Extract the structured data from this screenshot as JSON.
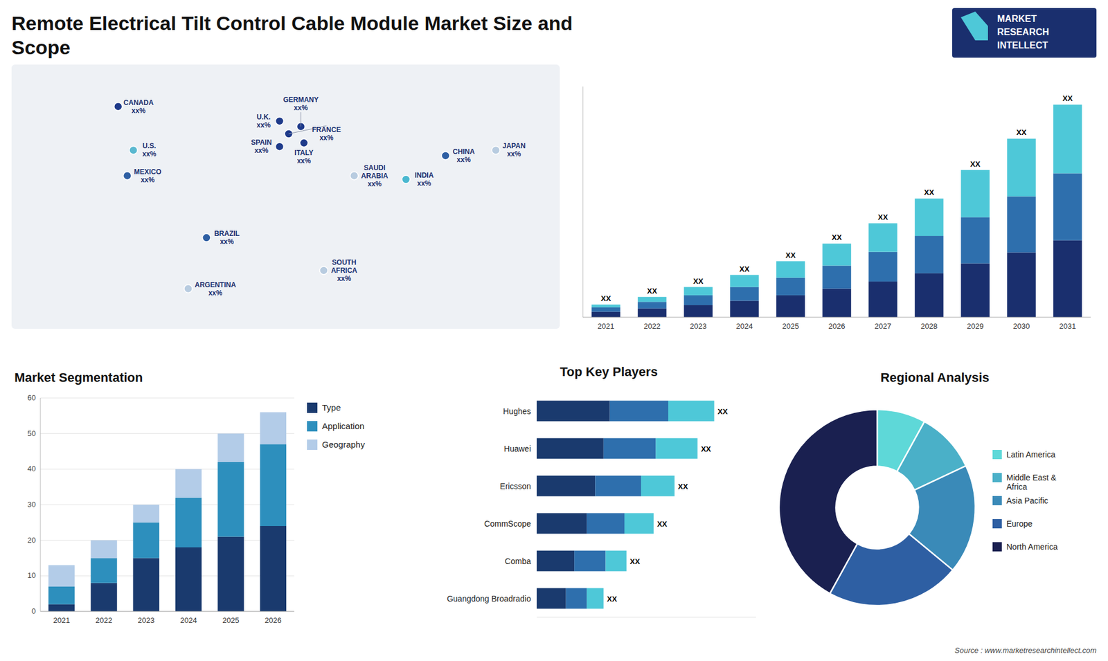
{
  "title": "Remote Electrical Tilt Control Cable Module Market Size and\nScope",
  "annotations": [
    "MARKET",
    "RESEARCH",
    "INTELLECT",
    "Source : www.marketresearchintellect.com"
  ],
  "chart_data": [
    {
      "type": "map",
      "categories": [
        "CANADA",
        "U.S.",
        "MEXICO",
        "BRAZIL",
        "ARGENTINA",
        "U.K.",
        "FRANCE",
        "SPAIN",
        "GERMANY",
        "ITALY",
        "SAUDI\nARABIA",
        "SOUTH\nAFRICA",
        "CHINA",
        "JAPAN",
        "INDIA"
      ],
      "x": [
        -110,
        -100,
        -104,
        -52,
        -64,
        -4,
        2,
        -4,
        10,
        12,
        45,
        25,
        105,
        138,
        79
      ],
      "y": [
        62,
        38,
        24,
        -10,
        -38,
        54,
        47,
        40,
        51,
        42,
        24,
        -28,
        35,
        38,
        22
      ],
      "annotations": [
        "xx%",
        "xx%",
        "xx%",
        "xx%",
        "xx%",
        "xx%",
        "xx%",
        "xx%",
        "xx%",
        "xx%",
        "xx%",
        "xx%",
        "xx%",
        "xx%",
        "xx%"
      ],
      "colors": [
        "#1e3a8a",
        "#5ab8d0",
        "#2e5fa3",
        "#2e5fa3",
        "#b8cce0",
        "#1e3a8a",
        "#1e3a8a",
        "#1e3a8a",
        "#1e3a8a",
        "#1e3a8a",
        "#b8cce0",
        "#b8cce0",
        "#2e5fa3",
        "#b8cce0",
        "#4ab8d0"
      ],
      "xlim": [
        -180,
        180
      ],
      "ylim": [
        -60,
        85
      ],
      "tick_labels": false
    },
    {
      "type": "bar",
      "stacked": true,
      "categories": [
        "2021",
        "2022",
        "2023",
        "2024",
        "2025",
        "2026",
        "2027",
        "2028",
        "2029",
        "2030",
        "2031"
      ],
      "series": [
        {
          "color": "#1a2f6e",
          "values": [
            1.0,
            1.6,
            2.2,
            3.0,
            4.0,
            5.2,
            6.5,
            8.0,
            9.8,
            11.8,
            14.0
          ]
        },
        {
          "color": "#2e6fad",
          "values": [
            0.8,
            1.2,
            1.8,
            2.5,
            3.2,
            4.2,
            5.4,
            6.8,
            8.4,
            10.2,
            12.2
          ]
        },
        {
          "color": "#4ec8d8",
          "values": [
            0.5,
            0.9,
            1.5,
            2.2,
            3.0,
            4.0,
            5.2,
            6.8,
            8.6,
            10.5,
            12.5
          ]
        }
      ],
      "ylim": [
        0,
        42
      ],
      "tick_labels": "x",
      "annotations": [
        "XX",
        "XX",
        "XX",
        "XX",
        "XX",
        "XX",
        "XX",
        "XX",
        "XX",
        "XX",
        "XX"
      ]
    },
    {
      "type": "bar",
      "title": "Market Segmentation",
      "stacked": true,
      "categories": [
        "2021",
        "2022",
        "2023",
        "2024",
        "2025",
        "2026"
      ],
      "series": [
        {
          "name": "Type",
          "color": "#1a3a6e",
          "values": [
            2,
            8,
            15,
            18,
            21,
            24
          ]
        },
        {
          "name": "Application",
          "color": "#2d8fbd",
          "values": [
            5,
            7,
            10,
            14,
            21,
            23
          ]
        },
        {
          "name": "Geography",
          "color": "#b3cce8",
          "values": [
            6,
            5,
            5,
            8,
            8,
            9
          ]
        }
      ],
      "ylim": [
        0,
        60
      ],
      "yticks": [
        0,
        10,
        20,
        30,
        40,
        50,
        60
      ],
      "grid": true,
      "legend": "right"
    },
    {
      "type": "bar",
      "title": "Top Key Players",
      "orientation": "horizontal",
      "stacked": true,
      "categories": [
        "Hughes",
        "Huawei",
        "Ericsson",
        "CommScope",
        "Comba",
        "Guangdong Broadradio"
      ],
      "series": [
        {
          "color": "#1a3a6e",
          "values": [
            0.35,
            0.32,
            0.28,
            0.24,
            0.18,
            0.14
          ]
        },
        {
          "color": "#2e6fad",
          "values": [
            0.28,
            0.25,
            0.22,
            0.18,
            0.15,
            0.1
          ]
        },
        {
          "color": "#4ec8d8",
          "values": [
            0.22,
            0.2,
            0.16,
            0.14,
            0.1,
            0.08
          ]
        }
      ],
      "xlim": [
        0,
        1.05
      ],
      "tick_labels": "y",
      "annotations": [
        "XX",
        "XX",
        "XX",
        "XX",
        "XX",
        "XX"
      ]
    },
    {
      "type": "pie",
      "title": "Regional Analysis",
      "categories": [
        "Latin America",
        "Middle East &\nAfrica",
        "Asia Pacific",
        "Europe",
        "North America"
      ],
      "values": [
        8,
        10,
        18,
        22,
        42
      ],
      "colors": [
        "#5ed8d8",
        "#4ab0c8",
        "#3a8ab8",
        "#2e5fa3",
        "#1a2050"
      ],
      "legend": "right"
    }
  ]
}
